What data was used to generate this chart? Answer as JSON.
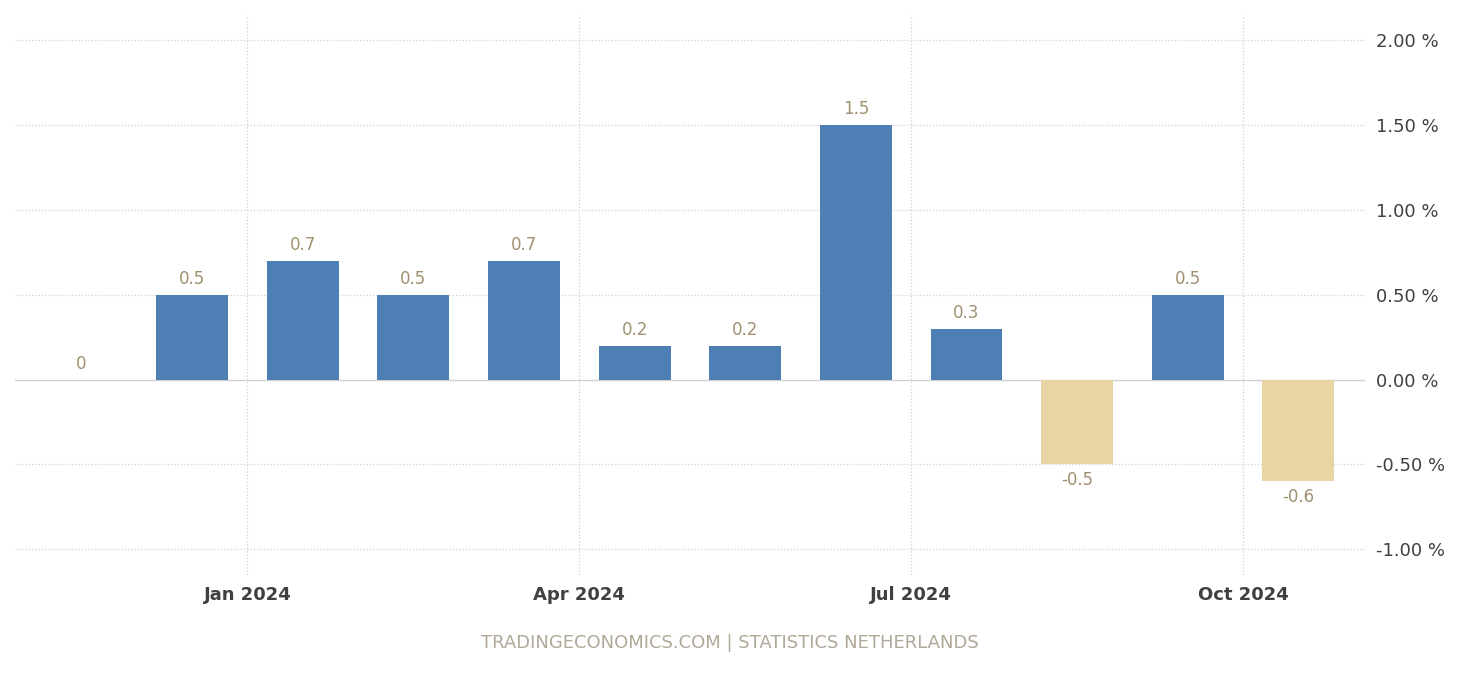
{
  "values": [
    0.0,
    0.5,
    0.7,
    0.5,
    0.7,
    0.2,
    0.2,
    1.5,
    0.3,
    -0.5,
    0.5,
    -0.6
  ],
  "bar_colors": [
    "#ffffff",
    "#4d7fb5",
    "#4d7fb5",
    "#4d7fb5",
    "#4d7fb5",
    "#4d7fb5",
    "#4d7fb5",
    "#4d7fb5",
    "#4d7fb5",
    "#e8d5a3",
    "#4d7fb5",
    "#e8d5a3"
  ],
  "bar_labels": [
    "0",
    "0.5",
    "0.7",
    "0.5",
    "0.7",
    "0.2",
    "0.2",
    "1.5",
    "0.3",
    "-0.5",
    "0.5",
    "-0.6"
  ],
  "x_tick_positions": [
    1.5,
    4.5,
    7.5,
    10.5
  ],
  "x_tick_labels": [
    "Jan 2024",
    "Apr 2024",
    "Jul 2024",
    "Oct 2024"
  ],
  "ylim": [
    -1.15,
    2.15
  ],
  "yticks": [
    -1.0,
    -0.5,
    0.0,
    0.5,
    1.0,
    1.5,
    2.0
  ],
  "ytick_labels": [
    "-1.00 %",
    "-0.50 %",
    "0.00 %",
    "0.50 %",
    "1.00 %",
    "1.50 %",
    "2.00 %"
  ],
  "background_color": "#ffffff",
  "grid_color": "#d0d0d0",
  "bar_label_color": "#a09070",
  "watermark": "TRADINGECONOMICS.COM | STATISTICS NETHERLANDS",
  "watermark_color": "#b0a898",
  "tick_label_color": "#404040",
  "label_fontsize": 12,
  "tick_fontsize": 13,
  "watermark_fontsize": 13,
  "bar_width": 0.65
}
